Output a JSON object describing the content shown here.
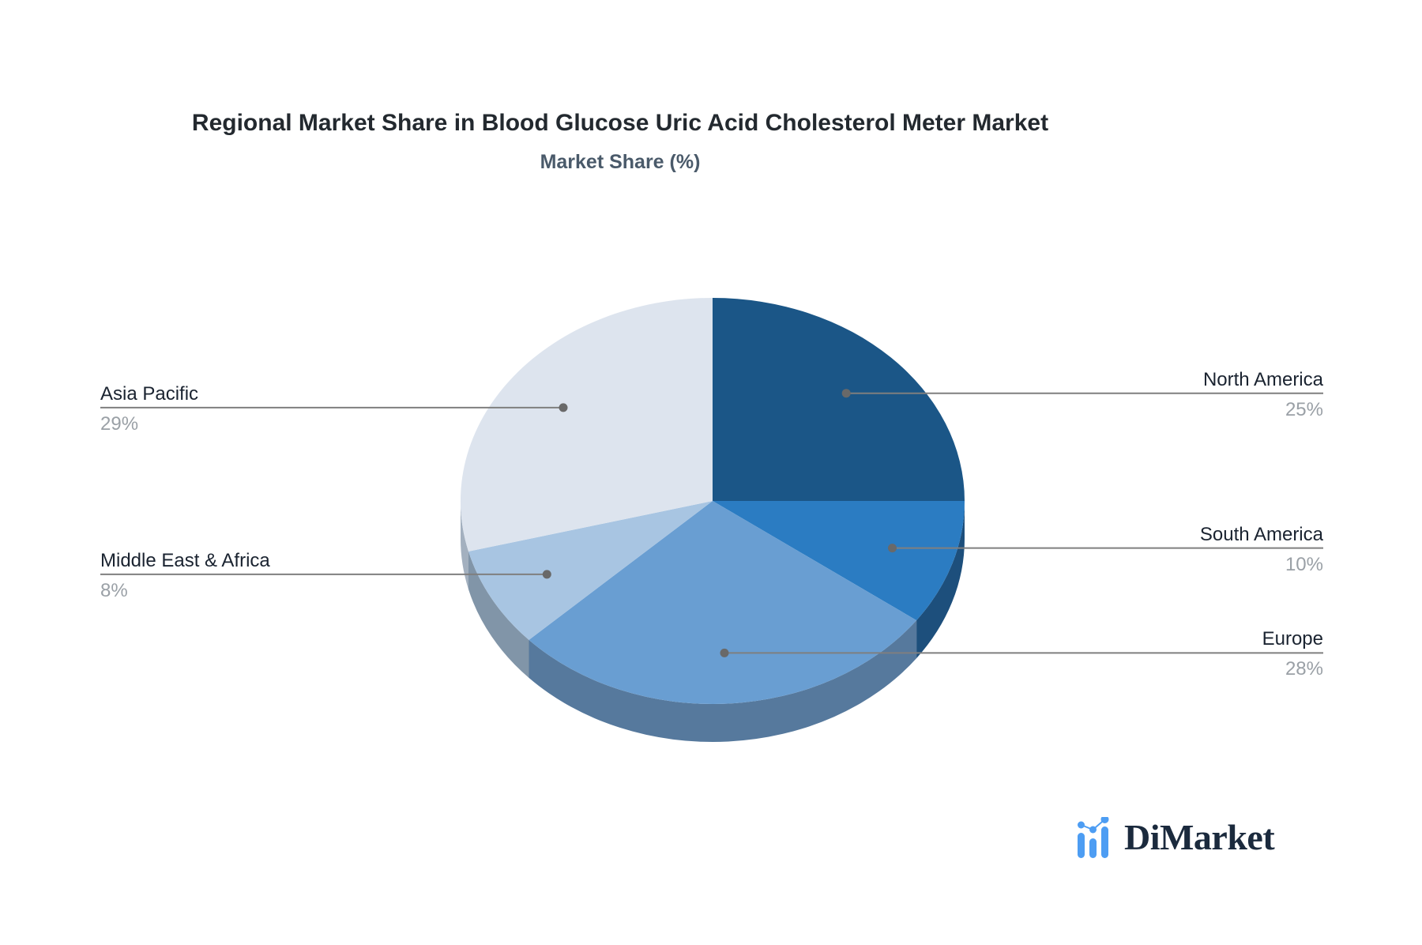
{
  "title": "Regional Market Share in Blood Glucose Uric Acid Cholesterol Meter Market",
  "subtitle": "Market Share (%)",
  "logo": {
    "text": "DiMarket"
  },
  "palette": {
    "line": "#7f7f7f",
    "dot": "#696969",
    "label": "#1a2330",
    "percent": "#9aa0a6",
    "title": "#23292f",
    "subtitle": "#4a5a6a",
    "logo_text": "#1b2a3d",
    "logo_blue": "#4d9df3",
    "background": "#ffffff"
  },
  "chart_data": {
    "type": "pie",
    "style": "3d",
    "title": "Regional Market Share in Blood Glucose Uric Acid Cholesterol Meter Market",
    "subtitle": "Market Share (%)",
    "unit": "%",
    "start_angle_deg": 0,
    "direction": "clockwise",
    "legend": "callout-labels",
    "slices": [
      {
        "label": "North America",
        "value": 25,
        "color": "#1b5687",
        "side_color": "#174a73"
      },
      {
        "label": "South America",
        "value": 10,
        "color": "#2b7cc2",
        "side_color": "#1d4f7c"
      },
      {
        "label": "Europe",
        "value": 28,
        "color": "#699ed2",
        "side_color": "#56799d"
      },
      {
        "label": "Middle East & Africa",
        "value": 8,
        "color": "#a8c5e2",
        "side_color": "#8195a8"
      },
      {
        "label": "Asia Pacific",
        "value": 29,
        "color": "#dde4ee",
        "side_color": "#a3b0bf"
      }
    ]
  }
}
